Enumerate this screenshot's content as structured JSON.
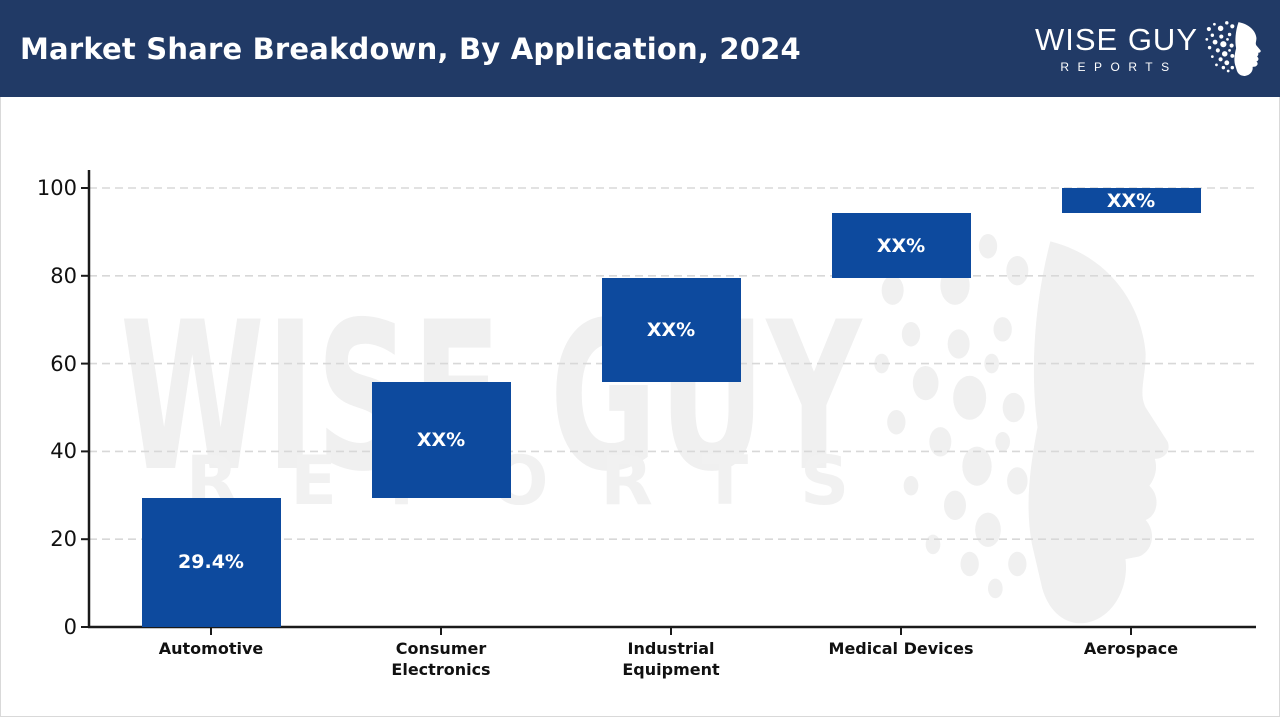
{
  "header": {
    "title": "Market Share Breakdown, By Application, 2024",
    "logo": {
      "name": "WISE GUY",
      "subtitle": "REPORTS"
    }
  },
  "watermark": {
    "line1": "WISE GUY",
    "line2": "REPORTS"
  },
  "colors": {
    "header_bg": "#213a66",
    "bar": "#0d4a9e",
    "bar_value_text": "#ffffff",
    "axis": "#1a1a1a",
    "gridline": "#d8d8d8",
    "tick_text": "#111111",
    "watermark": "#f0f0f0",
    "card_border": "#d9d9d9"
  },
  "chart_data": {
    "type": "bar",
    "subtype": "waterfall",
    "title": "Market Share Breakdown, By Application, 2024",
    "xlabel": "",
    "ylabel": "",
    "ylim": [
      0,
      100
    ],
    "yticks": [
      0,
      20,
      40,
      60,
      80,
      100
    ],
    "grid": "horizontal-dashed",
    "legend": "none",
    "categories": [
      {
        "label": "Automotive",
        "lines": [
          "Automotive"
        ]
      },
      {
        "label": "Consumer Electronics",
        "lines": [
          "Consumer",
          "Electronics"
        ]
      },
      {
        "label": "Industrial Equipment",
        "lines": [
          "Industrial",
          "Equipment"
        ]
      },
      {
        "label": "Medical Devices",
        "lines": [
          "Medical Devices"
        ]
      },
      {
        "label": "Aerospace",
        "lines": [
          "Aerospace"
        ]
      }
    ],
    "segments": [
      {
        "category": "Automotive",
        "start": 0,
        "end": 29.4,
        "value": 29.4,
        "label": "29.4%"
      },
      {
        "category": "Consumer Electronics",
        "start": 29.4,
        "end": 55.8,
        "value": 26.4,
        "label": "XX%"
      },
      {
        "category": "Industrial Equipment",
        "start": 55.8,
        "end": 79.5,
        "value": 23.7,
        "label": "XX%"
      },
      {
        "category": "Medical Devices",
        "start": 79.5,
        "end": 94.3,
        "value": 14.8,
        "label": "XX%"
      },
      {
        "category": "Aerospace",
        "start": 94.3,
        "end": 100,
        "value": 5.7,
        "label": "XX%"
      }
    ]
  }
}
